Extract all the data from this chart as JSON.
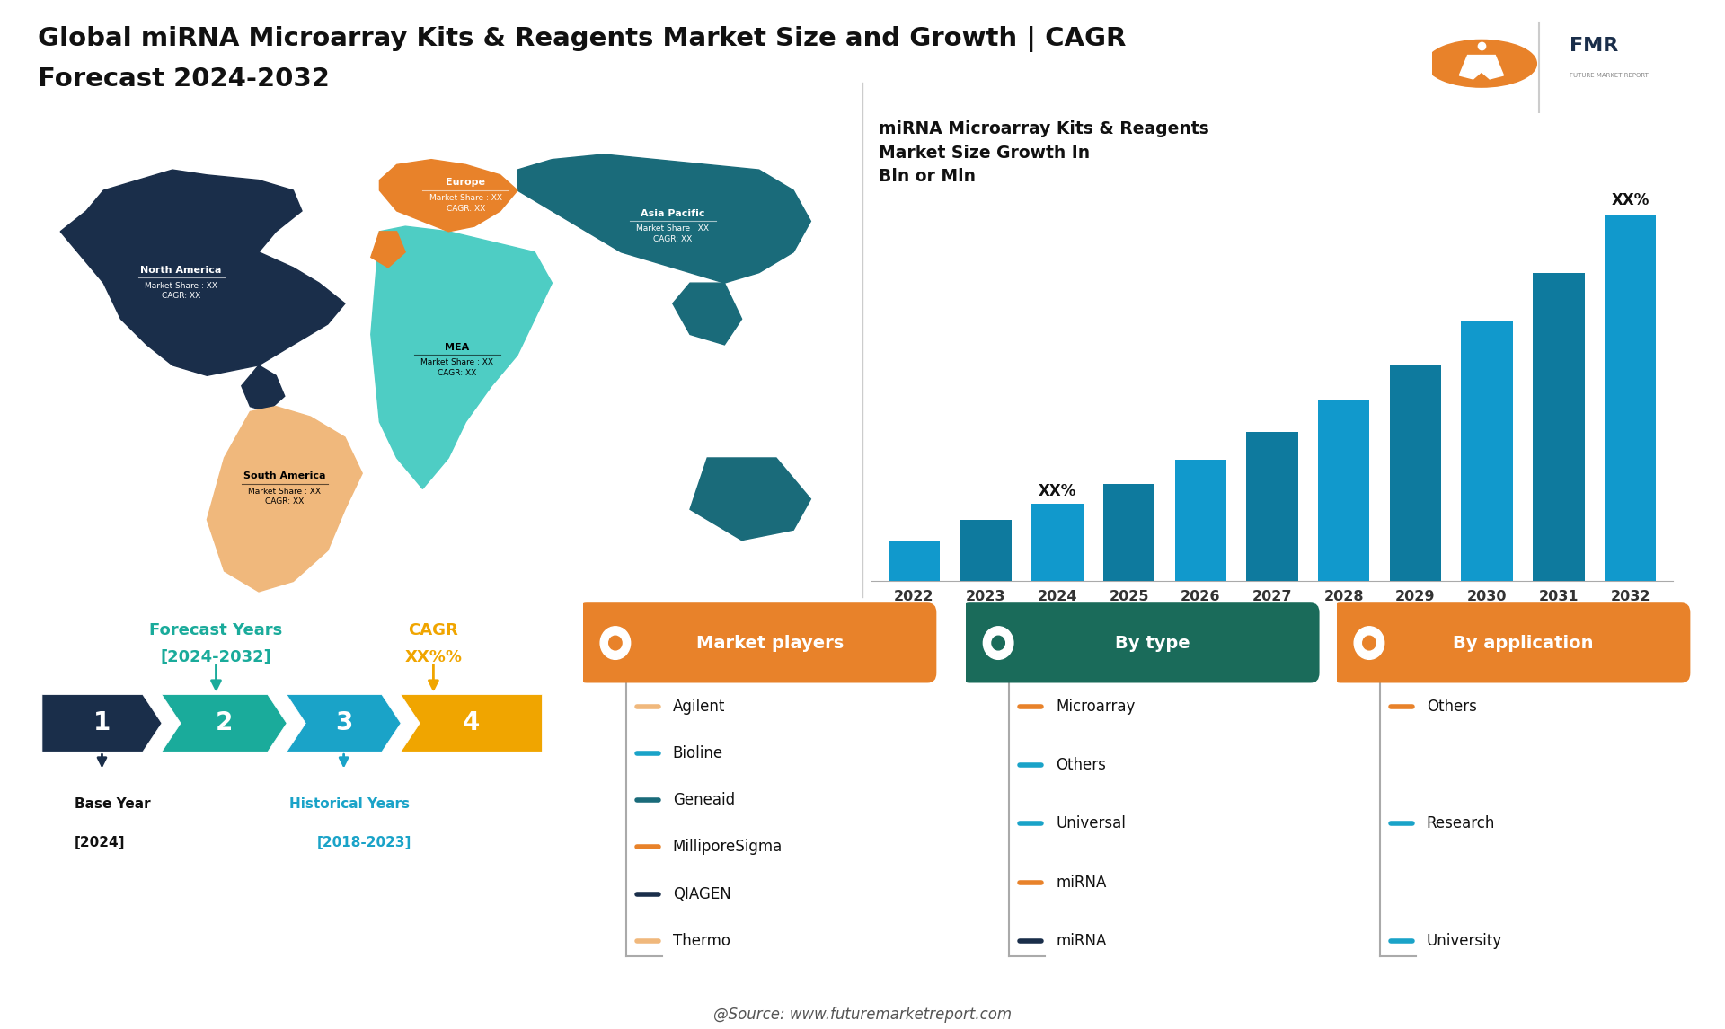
{
  "title_line1": "Global miRNA Microarray Kits & Reagents Market Size and Growth | CAGR",
  "title_line2": "Forecast 2024-2032",
  "chart_title": "miRNA Microarray Kits & Reagents\nMarket Size Growth In\nBln or Mln",
  "bar_years": [
    "2022",
    "2023",
    "2024",
    "2025",
    "2026",
    "2027",
    "2028",
    "2029",
    "2030",
    "2031",
    "2032"
  ],
  "bar_values": [
    1.0,
    1.55,
    1.95,
    2.45,
    3.05,
    3.75,
    4.55,
    5.45,
    6.55,
    7.75,
    9.2
  ],
  "bar_color_light": "#1199cc",
  "bar_color_dark": "#0e7a9e",
  "xx_label_2024": 2,
  "xx_label_2032": 10,
  "na_color": "#1a2e4a",
  "sa_color": "#f0b87c",
  "eu_color": "#e8822a",
  "mea_color": "#4ecdc4",
  "ap_color": "#1a6b7a",
  "aus_color": "#1a6b7a",
  "forecast_color": "#1aab9b",
  "cagr_color": "#f0a500",
  "base_year_color": "#111111",
  "hist_years_color": "#1aa3c8",
  "box_colors": [
    "#1a2e4a",
    "#1aab9b",
    "#1aa3c8",
    "#f0a500"
  ],
  "market_players": {
    "header": "Market players",
    "header_color": "#e8822a",
    "items": [
      "Agilent",
      "Bioline",
      "Geneaid",
      "MilliporeSigma",
      "QIAGEN",
      "Thermo"
    ],
    "bullet_colors": [
      "#f0b87c",
      "#1aa3c8",
      "#1a6b7a",
      "#e8822a",
      "#1a2e4a",
      "#f0b87c"
    ]
  },
  "by_type": {
    "header": "By type",
    "header_color": "#1a6b5a",
    "items": [
      "Microarray",
      "Others",
      "Universal",
      "miRNA",
      "miRNA"
    ],
    "bullet_colors": [
      "#e8822a",
      "#1aa3c8",
      "#1aa3c8",
      "#e8822a",
      "#1a2e4a"
    ]
  },
  "by_application": {
    "header": "By application",
    "header_color": "#e8822a",
    "items": [
      "Others",
      "Research",
      "University"
    ],
    "bullet_colors": [
      "#e8822a",
      "#1aa3c8",
      "#1aa3c8"
    ]
  },
  "source_text": "@Source: www.futuremarketreport.com",
  "bg_color": "#ffffff"
}
